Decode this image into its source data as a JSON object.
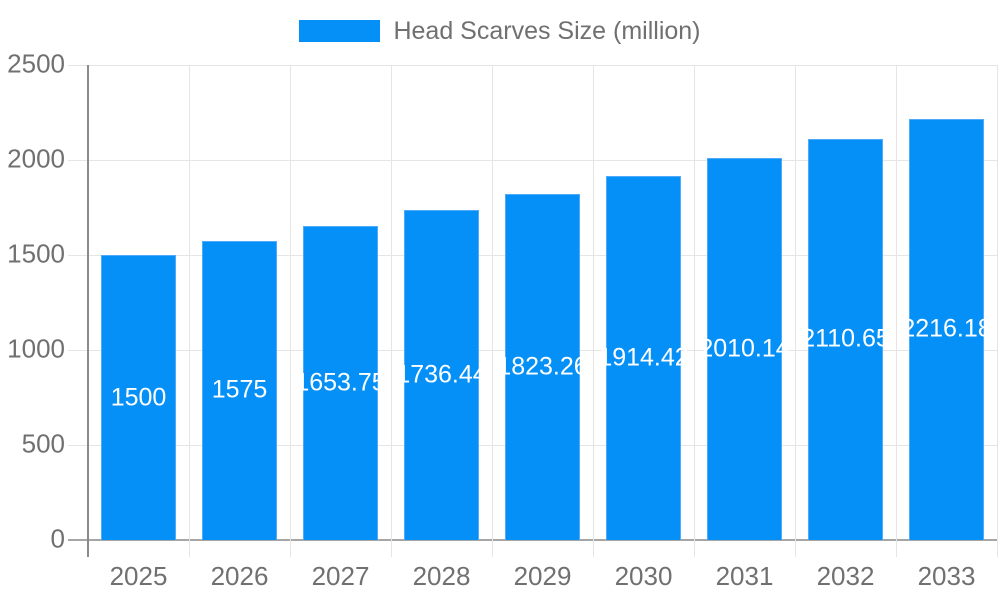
{
  "chart_data": {
    "type": "bar",
    "legend": "Head Scarves Size (million)",
    "legend_position": "top",
    "categories": [
      "2025",
      "2026",
      "2027",
      "2028",
      "2029",
      "2030",
      "2031",
      "2032",
      "2033"
    ],
    "series": [
      {
        "name": "Head Scarves Size (million)",
        "values": [
          1500,
          1575,
          1653.75,
          1736.44,
          1823.26,
          1914.42,
          2010.14,
          2110.65,
          2216.18
        ]
      }
    ],
    "value_labels": [
      "1500",
      "1575",
      "1653.75",
      "1736.44",
      "1823.26",
      "1914.42",
      "2010.14",
      "2110.65",
      "2216.18"
    ],
    "ylim": [
      0,
      2500
    ],
    "yticks": [
      0,
      500,
      1000,
      1500,
      2000,
      2500
    ],
    "grid": true,
    "colors": {
      "bar_fill": "#0590f8",
      "bar_border": "#4faaf9",
      "axis_text": "#707070",
      "value_label_text": "#ffffff",
      "gridline": "#e5e5e5",
      "y_axis_line": "#8a8a8a",
      "x_axis_line": "#a6a6a6"
    }
  }
}
